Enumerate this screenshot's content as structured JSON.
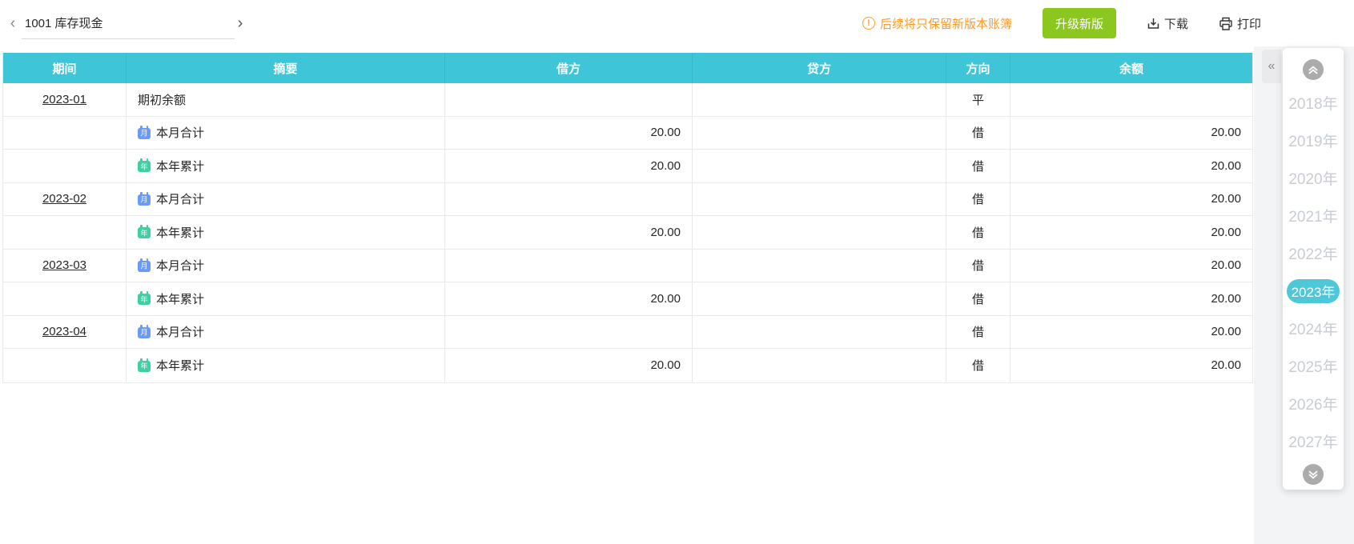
{
  "toolbar": {
    "prev_label": "‹",
    "next_label": "›",
    "account_title": "1001 库存现金",
    "warning_icon_char": "!",
    "warning_text": "后续将只保留新版本账簿",
    "upgrade_button_label": "升级新版",
    "download_label": "下载",
    "print_label": "打印"
  },
  "table": {
    "columns": [
      "期间",
      "摘要",
      "借方",
      "贷方",
      "方向",
      "余额"
    ],
    "rows": [
      {
        "period": "2023-01",
        "icon": "",
        "icon_char": "",
        "summary": "期初余额",
        "debit": "",
        "credit": "",
        "direction": "平",
        "balance": ""
      },
      {
        "period": "",
        "icon": "month",
        "icon_char": "月",
        "summary": "本月合计",
        "debit": "20.00",
        "credit": "",
        "direction": "借",
        "balance": "20.00"
      },
      {
        "period": "",
        "icon": "year",
        "icon_char": "年",
        "summary": "本年累计",
        "debit": "20.00",
        "credit": "",
        "direction": "借",
        "balance": "20.00"
      },
      {
        "period": "2023-02",
        "icon": "month",
        "icon_char": "月",
        "summary": "本月合计",
        "debit": "",
        "credit": "",
        "direction": "借",
        "balance": "20.00"
      },
      {
        "period": "",
        "icon": "year",
        "icon_char": "年",
        "summary": "本年累计",
        "debit": "20.00",
        "credit": "",
        "direction": "借",
        "balance": "20.00"
      },
      {
        "period": "2023-03",
        "icon": "month",
        "icon_char": "月",
        "summary": "本月合计",
        "debit": "",
        "credit": "",
        "direction": "借",
        "balance": "20.00"
      },
      {
        "period": "",
        "icon": "year",
        "icon_char": "年",
        "summary": "本年累计",
        "debit": "20.00",
        "credit": "",
        "direction": "借",
        "balance": "20.00"
      },
      {
        "period": "2023-04",
        "icon": "month",
        "icon_char": "月",
        "summary": "本月合计",
        "debit": "",
        "credit": "",
        "direction": "借",
        "balance": "20.00"
      },
      {
        "period": "",
        "icon": "year",
        "icon_char": "年",
        "summary": "本年累计",
        "debit": "20.00",
        "credit": "",
        "direction": "借",
        "balance": "20.00"
      }
    ]
  },
  "year_panel": {
    "collapse_icon_char": "«",
    "years": [
      {
        "label": "2018年",
        "selected": false
      },
      {
        "label": "2019年",
        "selected": false
      },
      {
        "label": "2020年",
        "selected": false
      },
      {
        "label": "2021年",
        "selected": false
      },
      {
        "label": "2022年",
        "selected": false
      },
      {
        "label": "2023年",
        "selected": true
      },
      {
        "label": "2024年",
        "selected": false
      },
      {
        "label": "2025年",
        "selected": false
      },
      {
        "label": "2026年",
        "selected": false
      },
      {
        "label": "2027年",
        "selected": false
      }
    ]
  },
  "colors": {
    "header_cyan": "#3ec6d8",
    "selected_year_cyan": "#4ec7d9",
    "upgrade_green": "#8bc71e",
    "warning_orange": "#ff9b28",
    "month_icon_blue": "#6b9bf8",
    "year_icon_green": "#3ed0a2"
  }
}
